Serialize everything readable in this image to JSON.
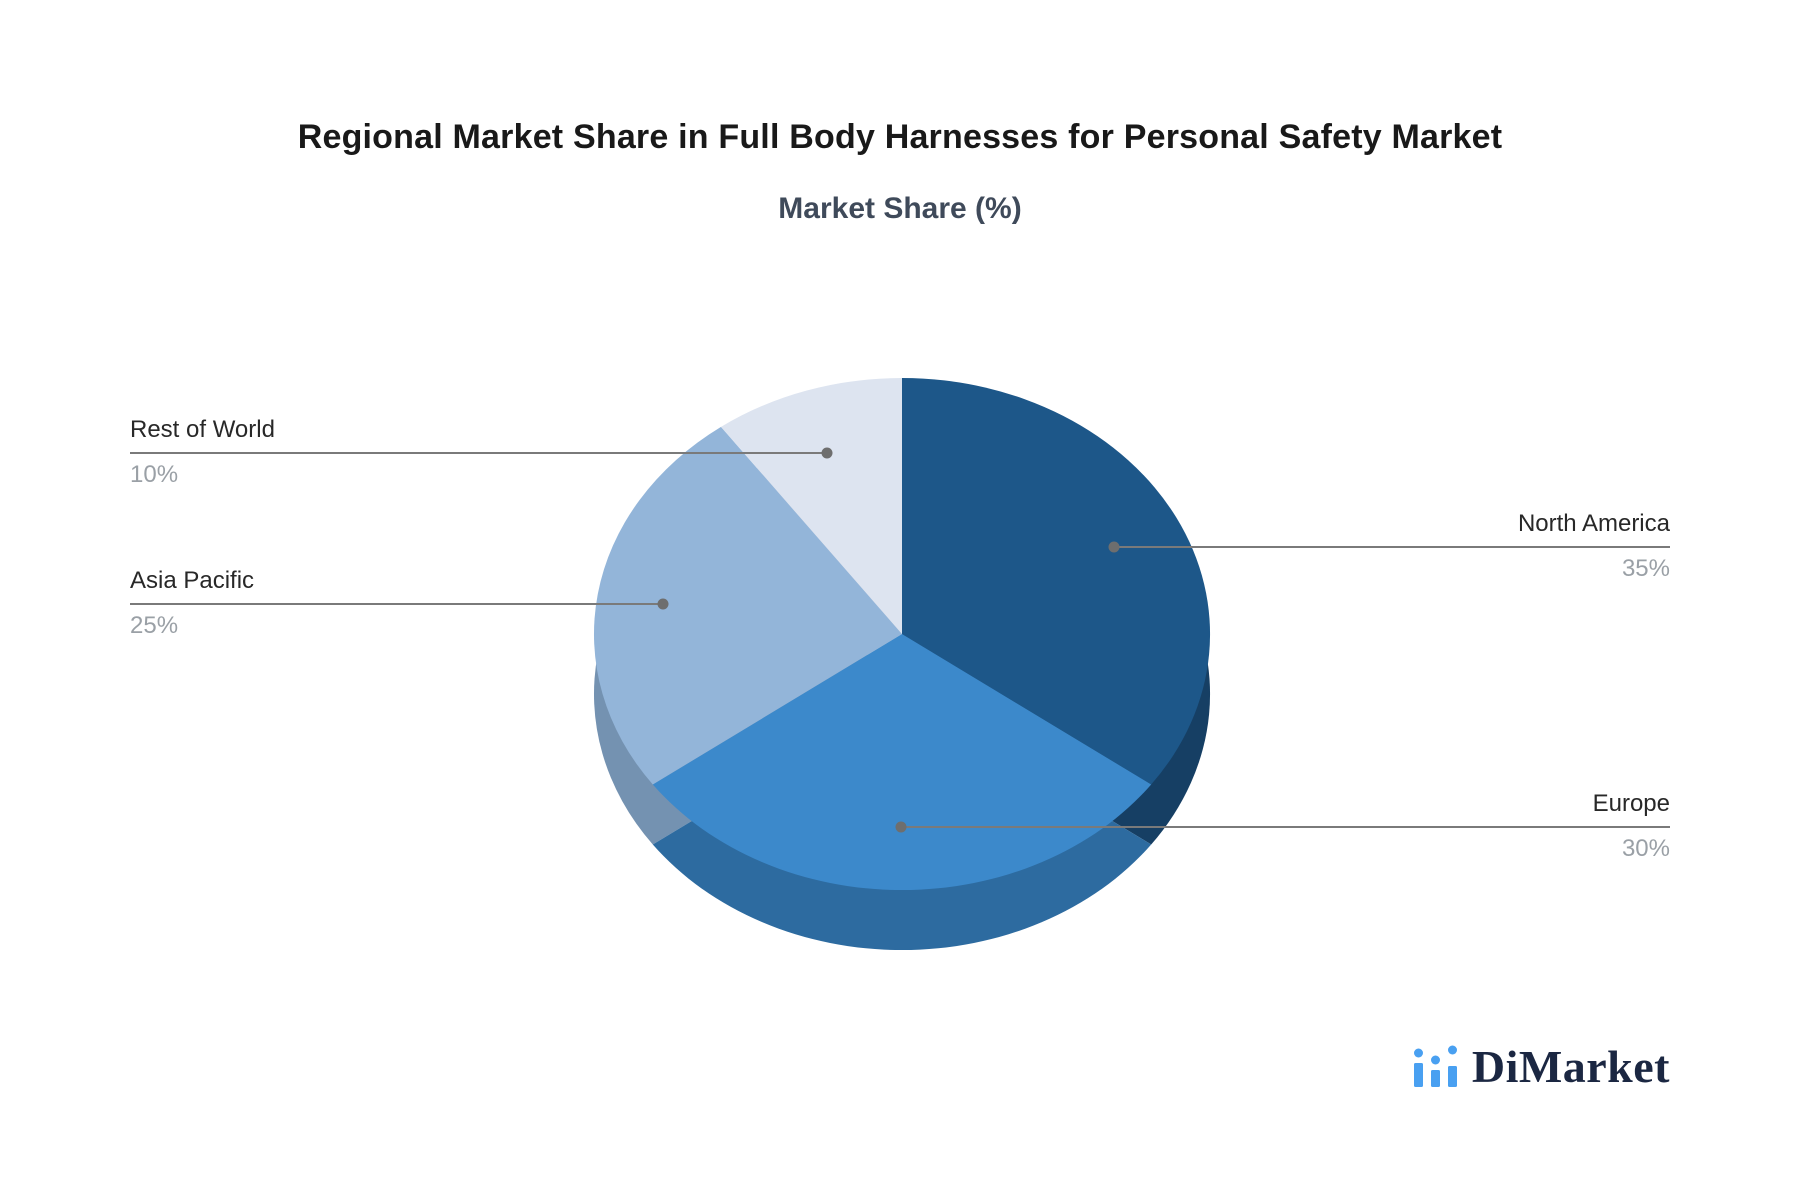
{
  "header": {
    "title": "Regional Market Share in Full Body Harnesses for Personal Safety Market",
    "subtitle": "Market Share (%)"
  },
  "chart_data": {
    "type": "pie",
    "title": "Regional Market Share in Full Body Harnesses for Personal Safety Market",
    "subtitle": "Market Share (%)",
    "unit": "%",
    "style": "3d-pie",
    "start_angle": "12-o-clock",
    "direction": "clockwise",
    "slices": [
      {
        "label": "North America",
        "value": 35,
        "pct_label": "35%",
        "color": "#1d5789",
        "side_color": "#163f64"
      },
      {
        "label": "Europe",
        "value": 30,
        "pct_label": "30%",
        "color": "#3c89cb",
        "side_color": "#2d6ba0"
      },
      {
        "label": "Asia Pacific",
        "value": 25,
        "pct_label": "25%",
        "color": "#93b5d9",
        "side_color": "#7492b1"
      },
      {
        "label": "Rest of World",
        "value": 10,
        "pct_label": "10%",
        "color": "#dde4f0",
        "side_color": "#b9c5d6"
      }
    ],
    "label_color": "#282828",
    "pct_color": "#9aa0a6",
    "leader_line_color": "#7a7a7a",
    "legend_position": "none"
  },
  "branding": {
    "logo_text": "DiMarket",
    "logo_icon_color": "#49a0f1"
  }
}
